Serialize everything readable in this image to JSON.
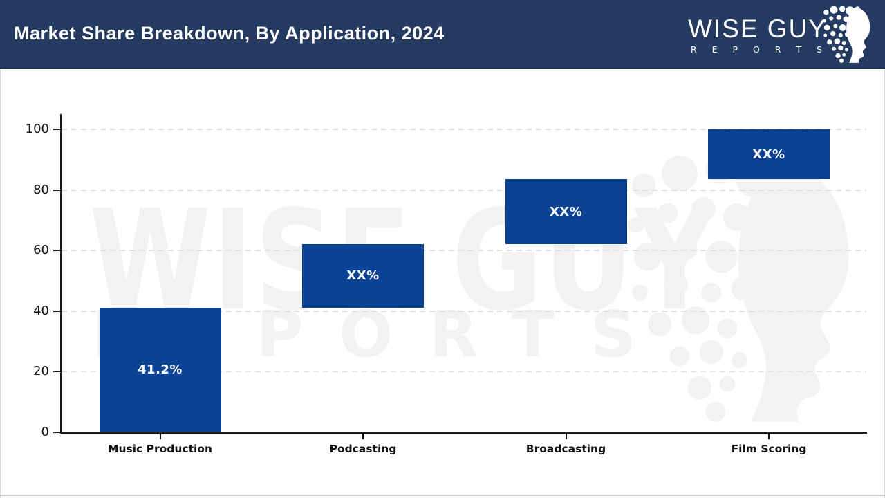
{
  "header": {
    "title": "Market Share Breakdown, By Application, 2024",
    "logo": {
      "line1": "WISE GUY",
      "line2": "R E P O R T S"
    }
  },
  "watermark": {
    "line1": "WISE GUY",
    "line2": "REPORTS"
  },
  "chart_data": {
    "type": "bar",
    "subtype": "floating-waterfall",
    "title": "Market Share Breakdown, By Application, 2024",
    "categories": [
      "Music Production",
      "Podcasting",
      "Broadcasting",
      "Film Scoring"
    ],
    "segments": [
      {
        "category": "Music Production",
        "start": 0,
        "end": 41.2,
        "label": "41.2%"
      },
      {
        "category": "Podcasting",
        "start": 41.2,
        "end": 62,
        "label": "XX%"
      },
      {
        "category": "Broadcasting",
        "start": 62,
        "end": 83.5,
        "label": "XX%"
      },
      {
        "category": "Film Scoring",
        "start": 83.5,
        "end": 100,
        "label": "XX%"
      }
    ],
    "yticks": [
      0,
      20,
      40,
      60,
      80,
      100
    ],
    "ylim": [
      0,
      105
    ],
    "xlabel": "",
    "ylabel": "",
    "bar_color": "#0a4396",
    "value_label_color": "#ffffff",
    "grid": "horizontal-dashed",
    "legend": "none"
  },
  "colors": {
    "header_bg": "#243a61",
    "bar": "#0a4396",
    "watermark": "#f2f2f3",
    "gridline": "#e0e0e0",
    "axis": "#1a1a1a"
  }
}
